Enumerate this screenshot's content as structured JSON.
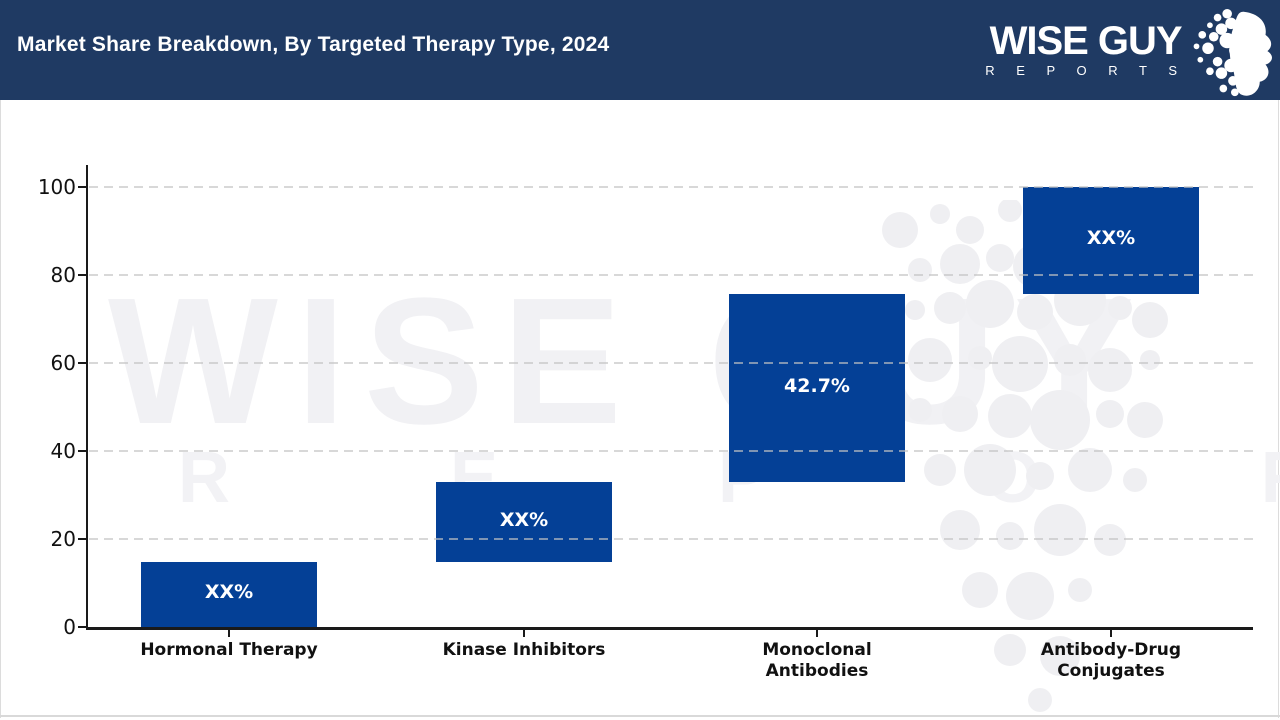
{
  "header": {
    "title": "Market Share Breakdown, By Targeted Therapy Type, 2024",
    "bg_color": "#1F3A63",
    "brand": {
      "wordmark": "WISE GUY",
      "sub": "R E P O R T S"
    }
  },
  "watermark": {
    "line1": "WISE GUY",
    "line2": "R E P O R T S"
  },
  "chart_data": {
    "type": "bar",
    "subtype": "floating-waterfall-segments",
    "title": "Market Share Breakdown, By Targeted Therapy Type, 2024",
    "categories": [
      "Hormonal Therapy",
      "Kinase Inhibitors",
      "Monoclonal Antibodies",
      "Antibody-Drug Conjugates"
    ],
    "category_lines": [
      [
        "Hormonal Therapy"
      ],
      [
        "Kinase Inhibitors"
      ],
      [
        "Monoclonal",
        "Antibodies"
      ],
      [
        "Antibody-Drug",
        "Conjugates"
      ]
    ],
    "series": [
      {
        "name": "Market Share %",
        "segments": [
          {
            "category": "Hormonal Therapy",
            "start": 0,
            "end": 14.8,
            "height": 14.8,
            "label": "XX%"
          },
          {
            "category": "Kinase Inhibitors",
            "start": 14.8,
            "end": 33.0,
            "height": 18.2,
            "label": "XX%"
          },
          {
            "category": "Monoclonal Antibodies",
            "start": 33.0,
            "end": 75.7,
            "height": 42.7,
            "label": "42.7%"
          },
          {
            "category": "Antibody-Drug Conjugates",
            "start": 75.7,
            "end": 100,
            "height": 24.3,
            "label": "XX%"
          }
        ]
      }
    ],
    "xlabel": "",
    "ylabel": "",
    "ylim": [
      0,
      100
    ],
    "yticks": [
      0,
      20,
      40,
      60,
      80,
      100
    ],
    "grid": "dashed-horizontal",
    "legend": "none",
    "bar_color": "#044096",
    "label_color": "#FFFFFF",
    "axis_color": "#1a1a1a"
  }
}
